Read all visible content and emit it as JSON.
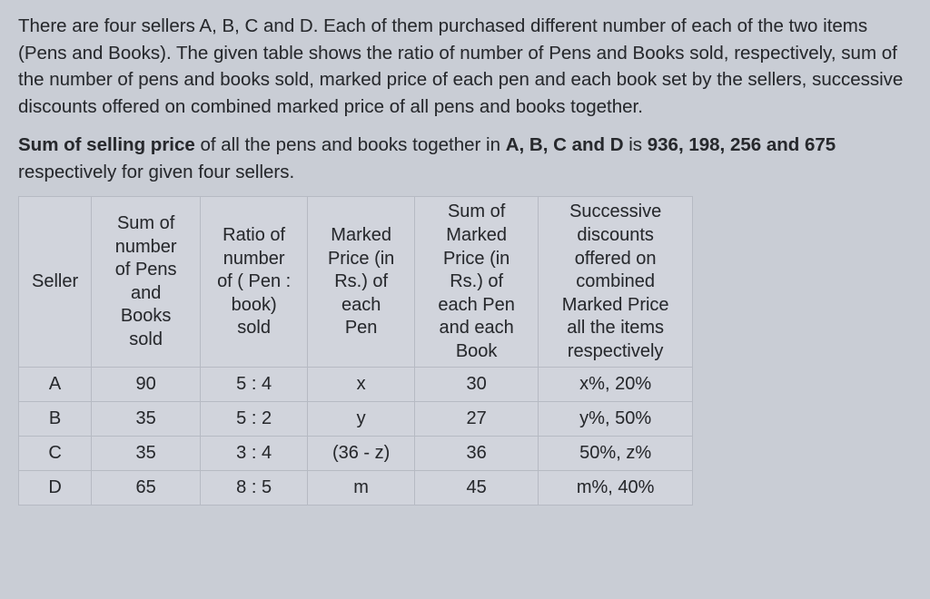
{
  "para1": "There are four sellers A, B, C and D. Each of them purchased different number of each of the two items (Pens and Books). The given table shows the ratio of number of Pens and Books sold, respectively, sum of the number of pens and books sold, marked price of each pen and each book set by the sellers, successive discounts offered on combined marked price of all pens and books together.",
  "para2_bold": "Sum of selling price",
  "para2_rest_a": " of all the pens and books together in ",
  "para2_rest_b": " is ",
  "para2_list": "A, B, C and D",
  "para2_vals": "936, 198, 256 and 675",
  "para2_rest_c": " respectively for given four sellers.",
  "table": {
    "headers": {
      "seller": "Seller",
      "sum": "Sum of\nnumber\nof Pens\nand\nBooks\nsold",
      "ratio": "Ratio of\nnumber\nof ( Pen :\nbook)\nsold",
      "mp": "Marked\nPrice (in\nRs.) of\neach\nPen",
      "summp": "Sum of\nMarked\nPrice (in\nRs.) of\neach Pen\nand each\nBook",
      "disc": "Successive\ndiscounts\noffered on\ncombined\nMarked Price\nall the items\nrespectively"
    },
    "rows": [
      {
        "seller": "A",
        "sum": "90",
        "ratio": "5 : 4",
        "mp": "x",
        "summp": "30",
        "disc": "x%, 20%"
      },
      {
        "seller": "B",
        "sum": "35",
        "ratio": "5 : 2",
        "mp": "y",
        "summp": "27",
        "disc": "y%, 50%"
      },
      {
        "seller": "C",
        "sum": "35",
        "ratio": "3 : 4",
        "mp": "(36 - z)",
        "summp": "36",
        "disc": "50%, z%"
      },
      {
        "seller": "D",
        "sum": "65",
        "ratio": "8 : 5",
        "mp": "m",
        "summp": "45",
        "disc": "m%, 40%"
      }
    ]
  }
}
